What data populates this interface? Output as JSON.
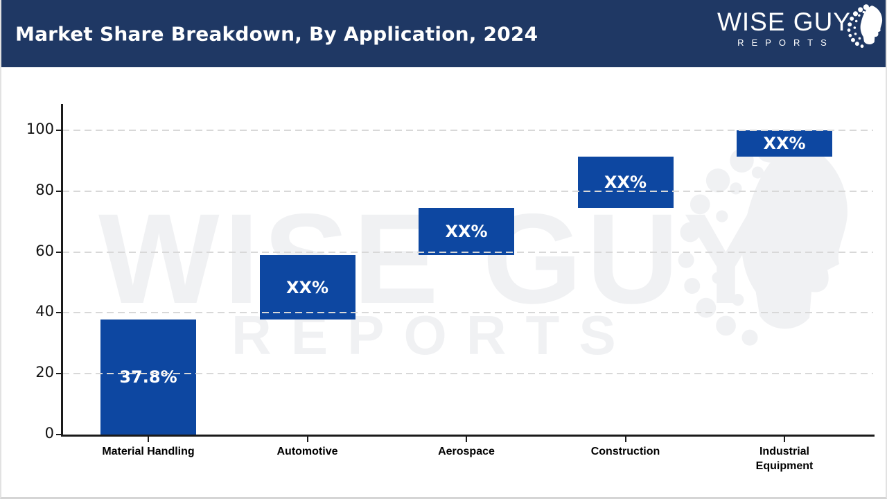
{
  "header": {
    "title": "Market Share Breakdown, By Application, 2024"
  },
  "brand": {
    "name_line1": "WISE GUY",
    "name_line2": "REPORTS"
  },
  "watermark": {
    "line1": "WISE GUY",
    "line2": "REPORTS"
  },
  "colors": {
    "header_bg": "#1f3864",
    "bar_fill": "#0d47a1",
    "bar_label_text": "#ffffff",
    "grid": "#d8d8d8",
    "axis": "#1a1a1a",
    "watermark": "#f0f1f3"
  },
  "chart_data": {
    "type": "bar",
    "subtype": "waterfall",
    "title": "Market Share Breakdown, By Application, 2024",
    "categories": [
      "Material Handling",
      "Automotive",
      "Aerospace",
      "Construction",
      "Industrial Equipment"
    ],
    "categories_display": [
      [
        "Material Handling"
      ],
      [
        "Automotive"
      ],
      [
        "Aerospace"
      ],
      [
        "Construction"
      ],
      [
        "Industrial",
        "Equipment"
      ]
    ],
    "segments": [
      {
        "category": "Material Handling",
        "start": 0,
        "end": 37.8,
        "label": "37.8%"
      },
      {
        "category": "Automotive",
        "start": 37.8,
        "end": 59,
        "label": "XX%"
      },
      {
        "category": "Aerospace",
        "start": 59,
        "end": 74.5,
        "label": "XX%"
      },
      {
        "category": "Construction",
        "start": 74.5,
        "end": 91.3,
        "label": "XX%"
      },
      {
        "category": "Industrial Equipment",
        "start": 91.3,
        "end": 100,
        "label": "XX%"
      }
    ],
    "ylim": [
      0,
      100
    ],
    "yticks": [
      0,
      20,
      40,
      60,
      80,
      100
    ],
    "grid": "horizontal-dashed",
    "legend": "none",
    "xlabel": "",
    "ylabel": ""
  }
}
